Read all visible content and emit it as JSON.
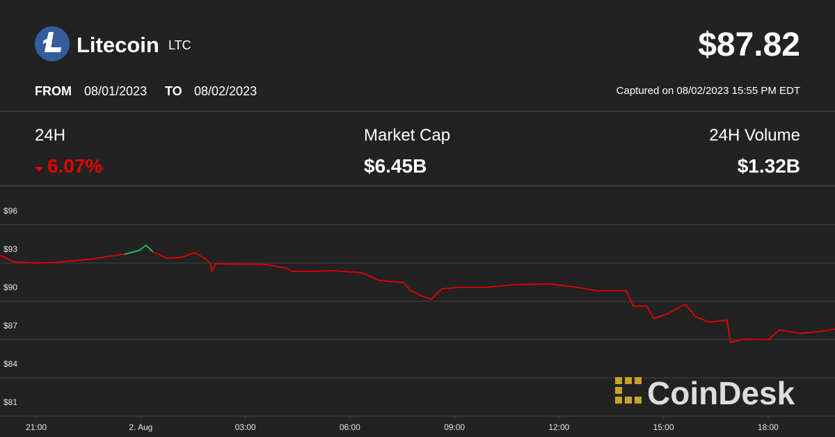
{
  "header": {
    "name": "Litecoin",
    "symbol": "LTC",
    "price": "$87.82",
    "from_label": "FROM",
    "from_date": "08/01/2023",
    "to_label": "TO",
    "to_date": "08/02/2023",
    "captured": "Captured on 08/02/2023 15:55 PM EDT"
  },
  "stats": [
    {
      "label": "24H",
      "value": "6.07%"
    },
    {
      "label": "Market Cap",
      "value": "$6.45B"
    },
    {
      "label": "24H Volume",
      "value": "$1.32B"
    }
  ],
  "watermark": "CoinDesk",
  "chart_data": {
    "type": "line",
    "x": [
      -4.04,
      -3.64,
      -3.04,
      -2.44,
      -2.04,
      -1.44,
      -0.84,
      -0.45,
      -0.05,
      0.15,
      0.35,
      0.75,
      1.15,
      1.55,
      1.85,
      1.99,
      2.05,
      2.15,
      2.95,
      3.55,
      4.15,
      4.35,
      4.94,
      5.54,
      6.34,
      6.84,
      7.54,
      7.74,
      8.04,
      8.34,
      8.64,
      9.14,
      9.93,
      10.73,
      11.73,
      12.53,
      13.13,
      13.93,
      14.13,
      14.52,
      14.72,
      15.12,
      15.62,
      15.92,
      16.32,
      16.82,
      16.92,
      17.32,
      17.72,
      18.02,
      18.32,
      18.92,
      19.52,
      19.92
    ],
    "series": [
      {
        "color": "#e60000",
        "values": [
          93.6,
          93.1,
          93.0,
          93.05,
          93.15,
          93.3,
          93.55,
          93.7,
          93.98,
          94.4,
          93.87,
          93.38,
          93.44,
          93.82,
          93.33,
          93.0,
          92.35,
          92.95,
          92.9,
          92.9,
          92.62,
          92.35,
          92.35,
          92.4,
          92.24,
          91.64,
          91.47,
          90.87,
          90.44,
          90.16,
          90.98,
          91.09,
          91.09,
          91.31,
          91.36,
          91.09,
          90.82,
          90.82,
          89.62,
          89.62,
          88.64,
          89.02,
          89.78,
          88.8,
          88.36,
          88.53,
          86.78,
          87.05,
          87.0,
          87.0,
          87.76,
          87.49,
          87.65,
          87.82
        ]
      }
    ],
    "up_color": "#22c55e",
    "xlim": [
      -4.04,
      19.92
    ],
    "xticks": [
      {
        "value": -3,
        "label": "21:00"
      },
      {
        "value": 0,
        "label": "2. Aug"
      },
      {
        "value": 3,
        "label": "03:00"
      },
      {
        "value": 6,
        "label": "06:00"
      },
      {
        "value": 9,
        "label": "09:00"
      },
      {
        "value": 12,
        "label": "12:00"
      },
      {
        "value": 15,
        "label": "15:00"
      },
      {
        "value": 18,
        "label": "18:00"
      }
    ],
    "ylim": [
      81,
      99
    ],
    "yticks": [
      {
        "value": 81,
        "label": "$81"
      },
      {
        "value": 84,
        "label": "$84"
      },
      {
        "value": 87,
        "label": "$87"
      },
      {
        "value": 90,
        "label": "$90"
      },
      {
        "value": 93,
        "label": "$93"
      },
      {
        "value": 96,
        "label": "$96"
      }
    ],
    "grid": true
  }
}
